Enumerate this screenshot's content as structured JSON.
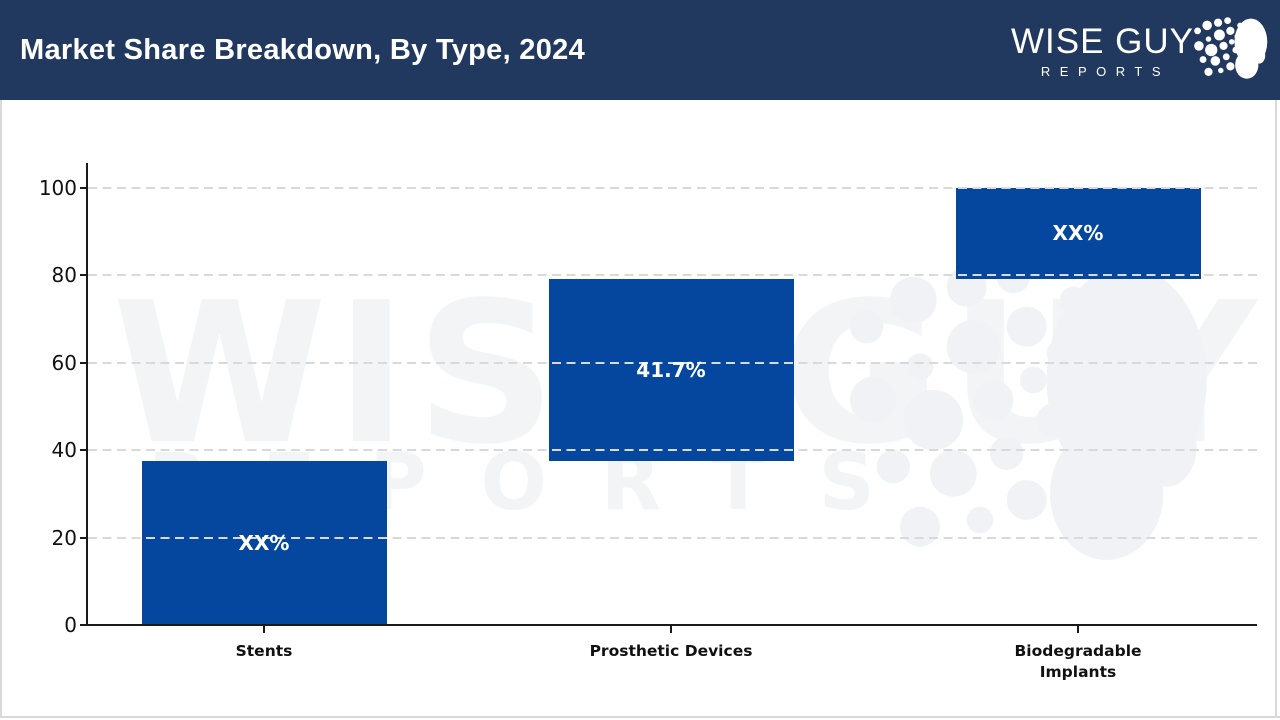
{
  "header": {
    "title": "Market Share Breakdown, By Type, 2024"
  },
  "logo": {
    "line1": "WISE GUY",
    "line2": "REPORTS",
    "face_icon": "dotted-head-profile"
  },
  "watermark": {
    "line1": "WISE GUY",
    "line2": "REPORTS",
    "face_icon": "dotted-head-profile"
  },
  "colors": {
    "header_bg": "#21395f",
    "bar_blue": "#05479E",
    "gridline": "#d9d9d9",
    "axis": "#1a1a1a",
    "value_label": "#ffffff",
    "watermark": "#f3f4f6"
  },
  "chart_data": {
    "type": "bar",
    "subtype": "floating-waterfall",
    "title": "Market Share Breakdown, By Type, 2024",
    "xlabel": "",
    "ylabel": "",
    "ylim": [
      0,
      100
    ],
    "yticks": [
      0,
      20,
      40,
      60,
      80,
      100
    ],
    "grid": "horizontal dashed, drawn over bars",
    "legend": "none",
    "bar_color": "#05479E",
    "categories": [
      "Stents",
      "Prosthetic Devices",
      "Biodegradable\nImplants"
    ],
    "bars": [
      {
        "category": "Stents",
        "start": 0,
        "end": 37.5,
        "value_label": "XX%"
      },
      {
        "category": "Prosthetic Devices",
        "start": 37.5,
        "end": 79.2,
        "value_label": "41.7%"
      },
      {
        "category": "Biodegradable\nImplants",
        "start": 79.2,
        "end": 100,
        "value_label": "XX%"
      }
    ]
  }
}
